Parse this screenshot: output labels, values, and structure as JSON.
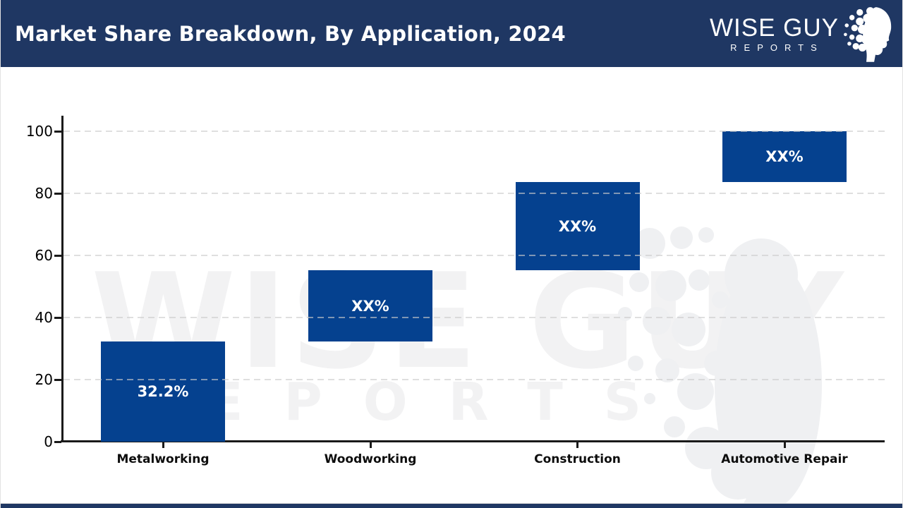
{
  "header": {
    "title": "Market Share Breakdown, By Application, 2024",
    "bg_color": "#1f3763",
    "logo": {
      "wordmark": "WISE GUY",
      "subtext": "REPORTS"
    }
  },
  "watermark": {
    "wordmark": "WISE GUY",
    "subtext": "REPORTS"
  },
  "chart_data": {
    "type": "bar",
    "subtype": "floating-waterfall",
    "title": "Market Share Breakdown, By Application, 2024",
    "categories": [
      "Metalworking",
      "Woodworking",
      "Construction",
      "Automotive Repair"
    ],
    "segments": [
      {
        "category": "Metalworking",
        "from": 0,
        "to": 32.2,
        "label": "32.2%"
      },
      {
        "category": "Woodworking",
        "from": 32.2,
        "to": 55.2,
        "label": "XX%"
      },
      {
        "category": "Construction",
        "from": 55.2,
        "to": 83.6,
        "label": "XX%"
      },
      {
        "category": "Automotive Repair",
        "from": 83.6,
        "to": 100,
        "label": "XX%"
      }
    ],
    "yticks": [
      0,
      20,
      40,
      60,
      80,
      100
    ],
    "ylim": [
      0,
      104
    ],
    "xlabel": "",
    "ylabel": "",
    "grid": {
      "axis": "y",
      "style": "dashed",
      "drawn_over_bars": true
    },
    "legend": null,
    "bar_color": "#05418f",
    "bar_label_color": "#ffffff",
    "axis_color": "#1a1a1a"
  }
}
